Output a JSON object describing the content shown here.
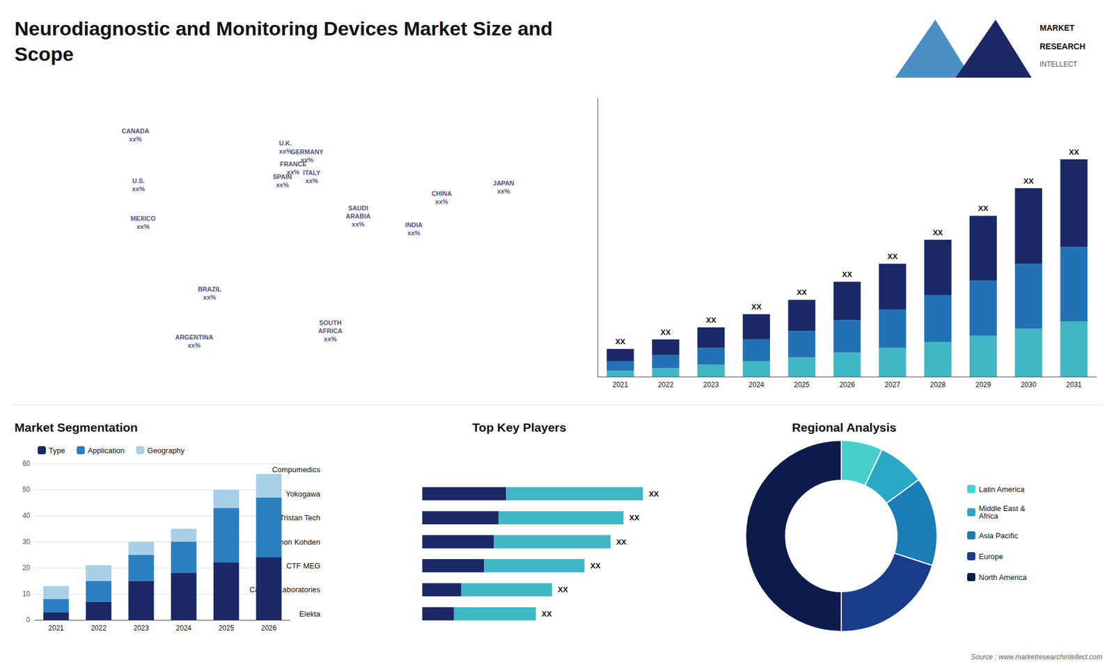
{
  "title": "Neurodiagnostic and Monitoring Devices Market Size and\nScope",
  "annotations": [
    {
      "text": "MARKET"
    },
    {
      "text": "RESEARCH"
    },
    {
      "text": "INTELLECT"
    },
    {
      "text": "Source : www.marketresearchintellect.com"
    }
  ],
  "chart_data": [
    {
      "type": "scatter",
      "xlim": [
        -180,
        180
      ],
      "ylim": [
        -65,
        85
      ],
      "tick_labels": false,
      "grid": false,
      "annotations": [
        {
          "text": "CANADA\nxx%",
          "x": -100,
          "y": 62
        },
        {
          "text": "U.S.\nxx%",
          "x": -98,
          "y": 38
        },
        {
          "text": "MEXICO\nxx%",
          "x": -95,
          "y": 20
        },
        {
          "text": "BRAZIL\nxx%",
          "x": -52,
          "y": -14
        },
        {
          "text": "ARGENTINA\nxx%",
          "x": -62,
          "y": -37
        },
        {
          "text": "U.K.\nxx%",
          "x": -3,
          "y": 56
        },
        {
          "text": "FRANCE\nxx%",
          "x": 2,
          "y": 46
        },
        {
          "text": "SPAIN\nxx%",
          "x": -5,
          "y": 40
        },
        {
          "text": "GERMANY\nxx%",
          "x": 11,
          "y": 52
        },
        {
          "text": "ITALY\nxx%",
          "x": 14,
          "y": 42
        },
        {
          "text": "SAUDI\nARABIA\nxx%",
          "x": 44,
          "y": 23
        },
        {
          "text": "SOUTH\nAFRICA\nxx%",
          "x": 26,
          "y": -32
        },
        {
          "text": "CHINA\nxx%",
          "x": 98,
          "y": 32
        },
        {
          "text": "INDIA\nxx%",
          "x": 80,
          "y": 17
        },
        {
          "text": "JAPAN\nxx%",
          "x": 138,
          "y": 37
        }
      ]
    },
    {
      "type": "bar",
      "stacked": true,
      "grid": false,
      "tick_labels": "x",
      "categories": [
        "2021",
        "2022",
        "2023",
        "2024",
        "2025",
        "2026",
        "2027",
        "2028",
        "2029",
        "2030",
        "2031"
      ],
      "series": [
        {
          "color": "#41b6c4",
          "values": [
            0.5,
            0.7,
            1.0,
            1.3,
            1.6,
            2.0,
            2.4,
            2.9,
            3.4,
            4.0,
            4.6
          ]
        },
        {
          "color": "#2171b5",
          "values": [
            0.8,
            1.1,
            1.4,
            1.8,
            2.2,
            2.7,
            3.2,
            3.9,
            4.6,
            5.4,
            6.2
          ]
        },
        {
          "color": "#1a2966",
          "values": [
            1.0,
            1.3,
            1.7,
            2.1,
            2.6,
            3.2,
            3.8,
            4.6,
            5.4,
            6.3,
            7.3
          ]
        }
      ],
      "ylim": [
        0,
        23.168
      ],
      "annotations": [
        {
          "text": "XX",
          "x": "2021"
        },
        {
          "text": "XX",
          "x": "2022"
        },
        {
          "text": "XX",
          "x": "2023"
        },
        {
          "text": "XX",
          "x": "2024"
        },
        {
          "text": "XX",
          "x": "2025"
        },
        {
          "text": "XX",
          "x": "2026"
        },
        {
          "text": "XX",
          "x": "2027"
        },
        {
          "text": "XX",
          "x": "2028"
        },
        {
          "text": "XX",
          "x": "2029"
        },
        {
          "text": "XX",
          "x": "2030"
        },
        {
          "text": "XX",
          "x": "2031"
        }
      ]
    },
    {
      "type": "bar",
      "stacked": true,
      "title": "Market Segmentation",
      "grid": true,
      "legend": "top",
      "categories": [
        "2021",
        "2022",
        "2023",
        "2024",
        "2025",
        "2026"
      ],
      "series": [
        {
          "name": "Type",
          "color": "#1a2966",
          "values": [
            3,
            7,
            15,
            18,
            22,
            24
          ]
        },
        {
          "name": "Application",
          "color": "#2a7fc1",
          "values": [
            5,
            8,
            10,
            12,
            21,
            23
          ]
        },
        {
          "name": "Geography",
          "color": "#a8cfe8",
          "values": [
            5,
            6,
            5,
            5,
            7,
            9
          ]
        }
      ],
      "ylim": [
        0,
        60
      ],
      "yticks": [
        0,
        10,
        20,
        30,
        40,
        50,
        60
      ]
    },
    {
      "type": "bar",
      "orientation": "horizontal",
      "stacked": true,
      "title": "Top Key Players",
      "grid": false,
      "tick_labels": "y",
      "categories": [
        "Compumedics",
        "Yokogawa",
        "Tristan Tech",
        "Nihon Kohden",
        "CTF MEG",
        "Cadwell Laboratories",
        "Elekta"
      ],
      "series": [
        {
          "color": "#1a2966",
          "values": [
            0,
            25.84,
            23.56,
            22.04,
            19,
            12,
            9.8
          ]
        },
        {
          "color": "#41b6c4",
          "values": [
            0,
            42.16,
            38.44,
            35.96,
            31,
            28,
            25.2
          ]
        }
      ],
      "xlim": [
        -30,
        88
      ],
      "annotations": [
        {
          "text": "XX",
          "y": "Yokogawa"
        },
        {
          "text": "XX",
          "y": "Tristan Tech"
        },
        {
          "text": "XX",
          "y": "Nihon Kohden"
        },
        {
          "text": "XX",
          "y": "CTF MEG"
        },
        {
          "text": "XX",
          "y": "Cadwell Laboratories"
        },
        {
          "text": "XX",
          "y": "Elekta"
        }
      ]
    },
    {
      "type": "pie",
      "title": "Regional Analysis",
      "legend": "right",
      "categories": [
        "Latin America",
        "Middle East &\nAfrica",
        "Asia Pacific",
        "Europe",
        "North America"
      ],
      "values": [
        7,
        8,
        15,
        20,
        50
      ],
      "colors": [
        "#48d1cc",
        "#29a9c4",
        "#1a7db5",
        "#1a3d8a",
        "#0d1b4b"
      ]
    }
  ]
}
